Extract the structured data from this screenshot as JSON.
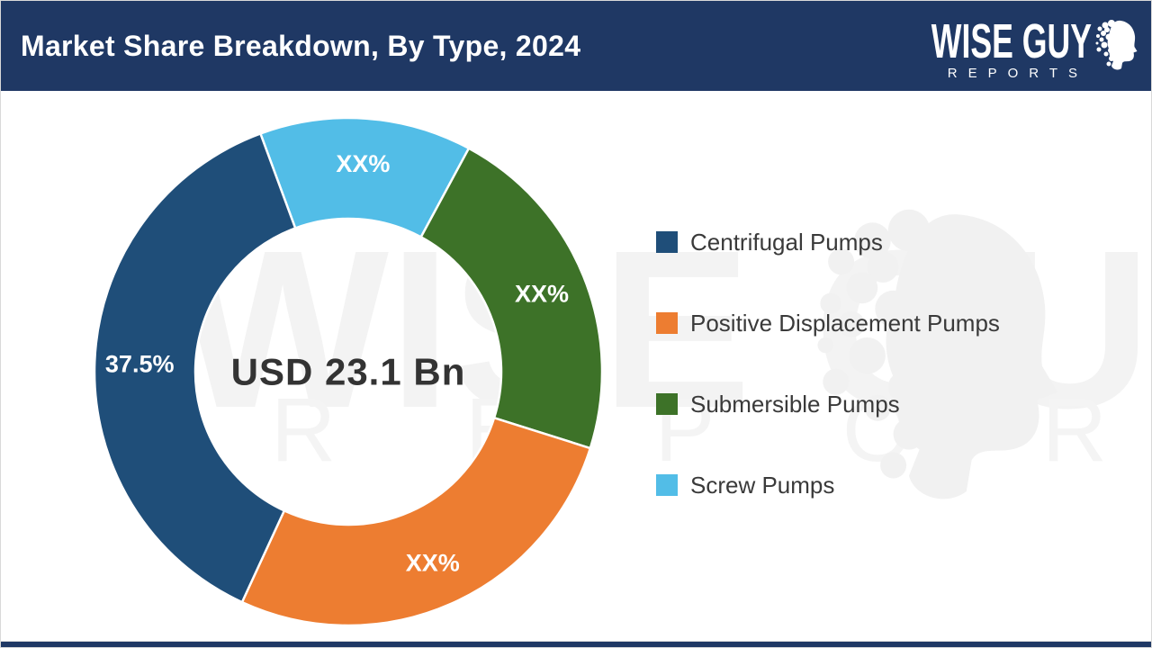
{
  "header": {
    "title": "Market Share Breakdown, By Type, 2024",
    "logo": {
      "wordmark": "WISE GUY",
      "subtext": "REPORTS"
    }
  },
  "watermark": {
    "wordmark": "WISE GUY",
    "subtext": "R E P O R T S"
  },
  "chart_data": {
    "type": "donut",
    "title": "Market Share Breakdown, By Type, 2024",
    "center_label": "USD 23.1 Bn",
    "unit": "percent share",
    "start_angle_deg_from_top": -20.25,
    "segments": [
      {
        "name": "Screw Pumps",
        "value": 13.5,
        "label": "XX%",
        "color": "#52BDE7"
      },
      {
        "name": "Submersible Pumps",
        "value": 22,
        "label": "XX%",
        "color": "#3D7228"
      },
      {
        "name": "Positive Displacement Pumps",
        "value": 27,
        "label": "XX%",
        "color": "#ED7D31"
      },
      {
        "name": "Centrifugal Pumps",
        "value": 37.5,
        "label": "37.5%",
        "color": "#1F4E79"
      }
    ],
    "legend_order": [
      "Centrifugal Pumps",
      "Positive Displacement Pumps",
      "Submersible Pumps",
      "Screw Pumps"
    ],
    "legend_position": "right"
  },
  "colors": {
    "header_bg": "#1F3864",
    "footer_bar": "#1F3864",
    "center_text": "#333333",
    "legend_text": "#3A3A3A",
    "slice_label_text": "#FFFFFF",
    "watermark": "#F3F3F3"
  }
}
